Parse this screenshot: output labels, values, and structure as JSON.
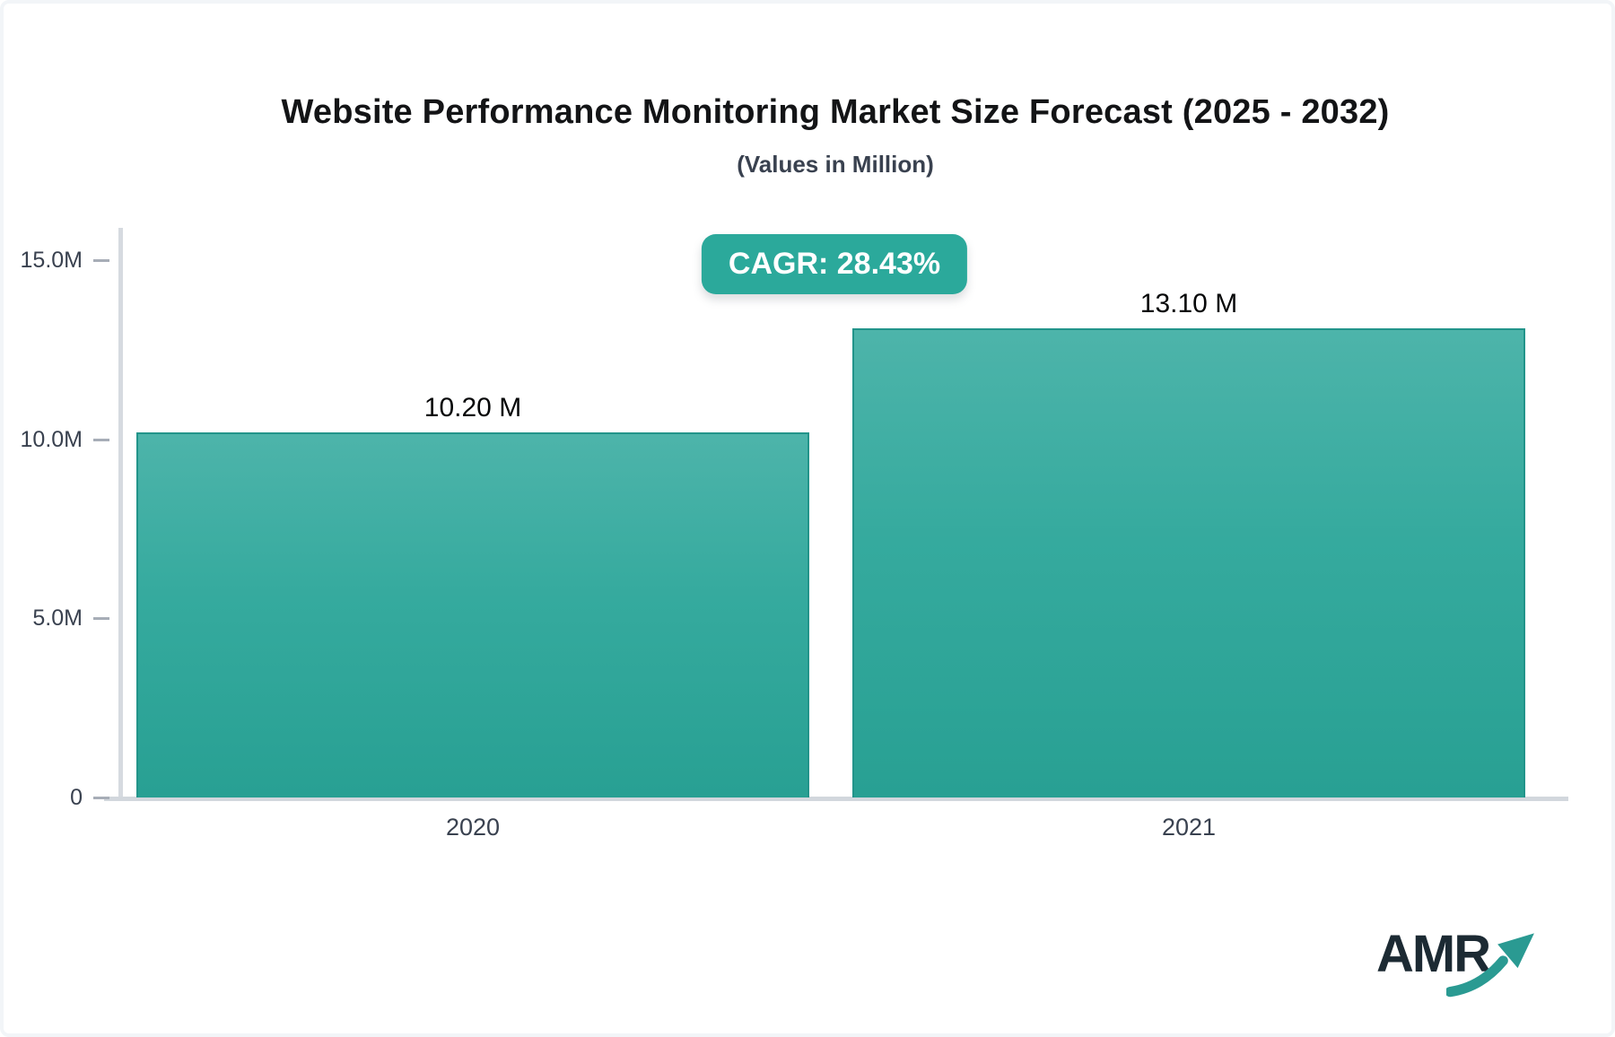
{
  "chart_data": {
    "type": "bar",
    "title": "Website Performance Monitoring Market Size Forecast (2025 - 2032)",
    "subtitle": "(Values in Million)",
    "cagr_badge": "CAGR: 28.43%",
    "categories": [
      "2020",
      "2021"
    ],
    "values": [
      10.2,
      13.1
    ],
    "value_labels": [
      "10.20 M",
      "13.10 M"
    ],
    "xlabel": "",
    "ylabel": "",
    "ylim": [
      0,
      15
    ],
    "yticks": [
      {
        "label": "15.0M",
        "value": 15
      },
      {
        "label": "10.0M",
        "value": 10
      },
      {
        "label": "5.0M",
        "value": 5
      },
      {
        "label": "0",
        "value": 0
      }
    ],
    "grid": false,
    "legend": "none"
  },
  "colors": {
    "bar_gradient_top": "#4db4aa",
    "bar_gradient_bottom": "#28a093",
    "bar_border": "#22948a",
    "badge_background": "#2ba99b",
    "badge_text": "#ffffff",
    "axis_line": "#d6dae0",
    "tick_text": "#39414f",
    "title_text": "#131416",
    "value_label_text": "#070809",
    "logo_text": "#1c2a33",
    "logo_arrow": "#2a9a92"
  },
  "logo": {
    "text": "AMR"
  }
}
